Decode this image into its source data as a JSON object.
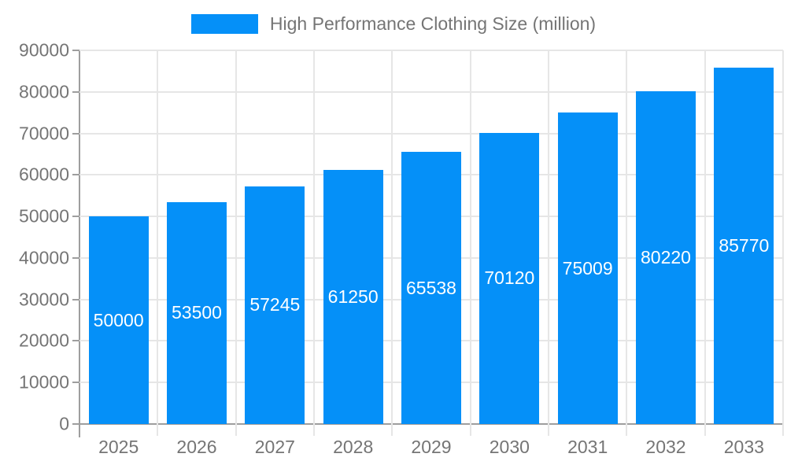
{
  "chart_data": {
    "type": "bar",
    "title": "",
    "legend": [
      {
        "label": "High Performance Clothing Size (million)",
        "color": "#0590F8"
      }
    ],
    "legend_position": "top-center",
    "categories": [
      "2025",
      "2026",
      "2027",
      "2028",
      "2029",
      "2030",
      "2031",
      "2032",
      "2033"
    ],
    "series": [
      {
        "name": "High Performance Clothing Size (million)",
        "values": [
          50000,
          53500,
          57245,
          61250,
          65538,
          70120,
          75009,
          80220,
          85770
        ]
      }
    ],
    "value_labels_shown": true,
    "xlabel": "",
    "ylabel": "",
    "ylim": [
      0,
      90000
    ],
    "y_ticks": [
      0,
      10000,
      20000,
      30000,
      40000,
      50000,
      60000,
      70000,
      80000,
      90000
    ],
    "grid": true,
    "colors": {
      "bar": "#0590F8",
      "grid": "#E6E6E6",
      "axis_line": "#9E9E9E",
      "tick": "#9E9E9E",
      "axis_text": "#757575",
      "value_label_text": "#FFFFFF",
      "background": "#FFFFFF"
    }
  }
}
